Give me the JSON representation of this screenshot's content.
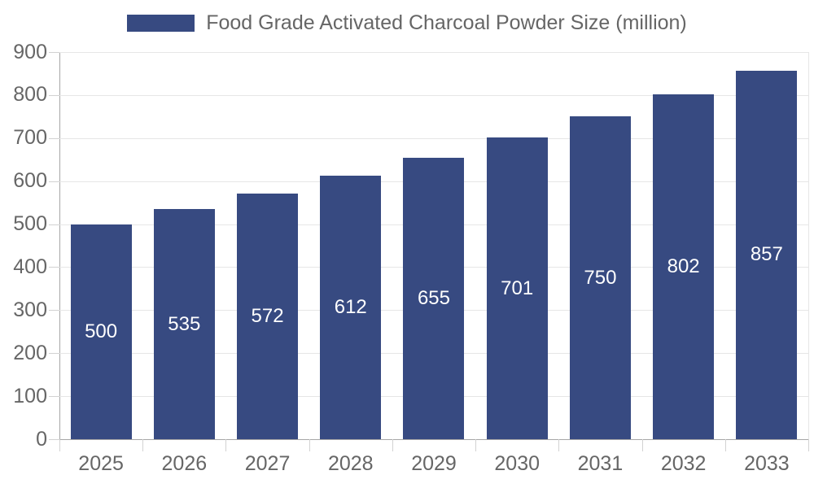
{
  "chart_data": {
    "type": "bar",
    "title": "Food Grade Activated Charcoal Powder Size (million)",
    "categories": [
      "2025",
      "2026",
      "2027",
      "2028",
      "2029",
      "2030",
      "2031",
      "2032",
      "2033"
    ],
    "series": [
      {
        "name": "Food Grade Activated Charcoal Powder Size (million)",
        "values": [
          500,
          535,
          572,
          612,
          655,
          701,
          750,
          802,
          857
        ]
      }
    ],
    "xlabel": "",
    "ylabel": "",
    "ylim": [
      0,
      900
    ],
    "ytick_step": 100,
    "grid": true,
    "legend_position": "top",
    "value_labels": "inside-center"
  },
  "colors": {
    "bar": "#374a81",
    "value_label": "#ffffff",
    "axis_text": "#666666",
    "legend_text": "#666666",
    "grid": "#e6e6e6",
    "plot_border": "#e6e6e6",
    "axis_line": "#a6a6a6",
    "tick": "#d2d2d2",
    "background": "#ffffff"
  }
}
